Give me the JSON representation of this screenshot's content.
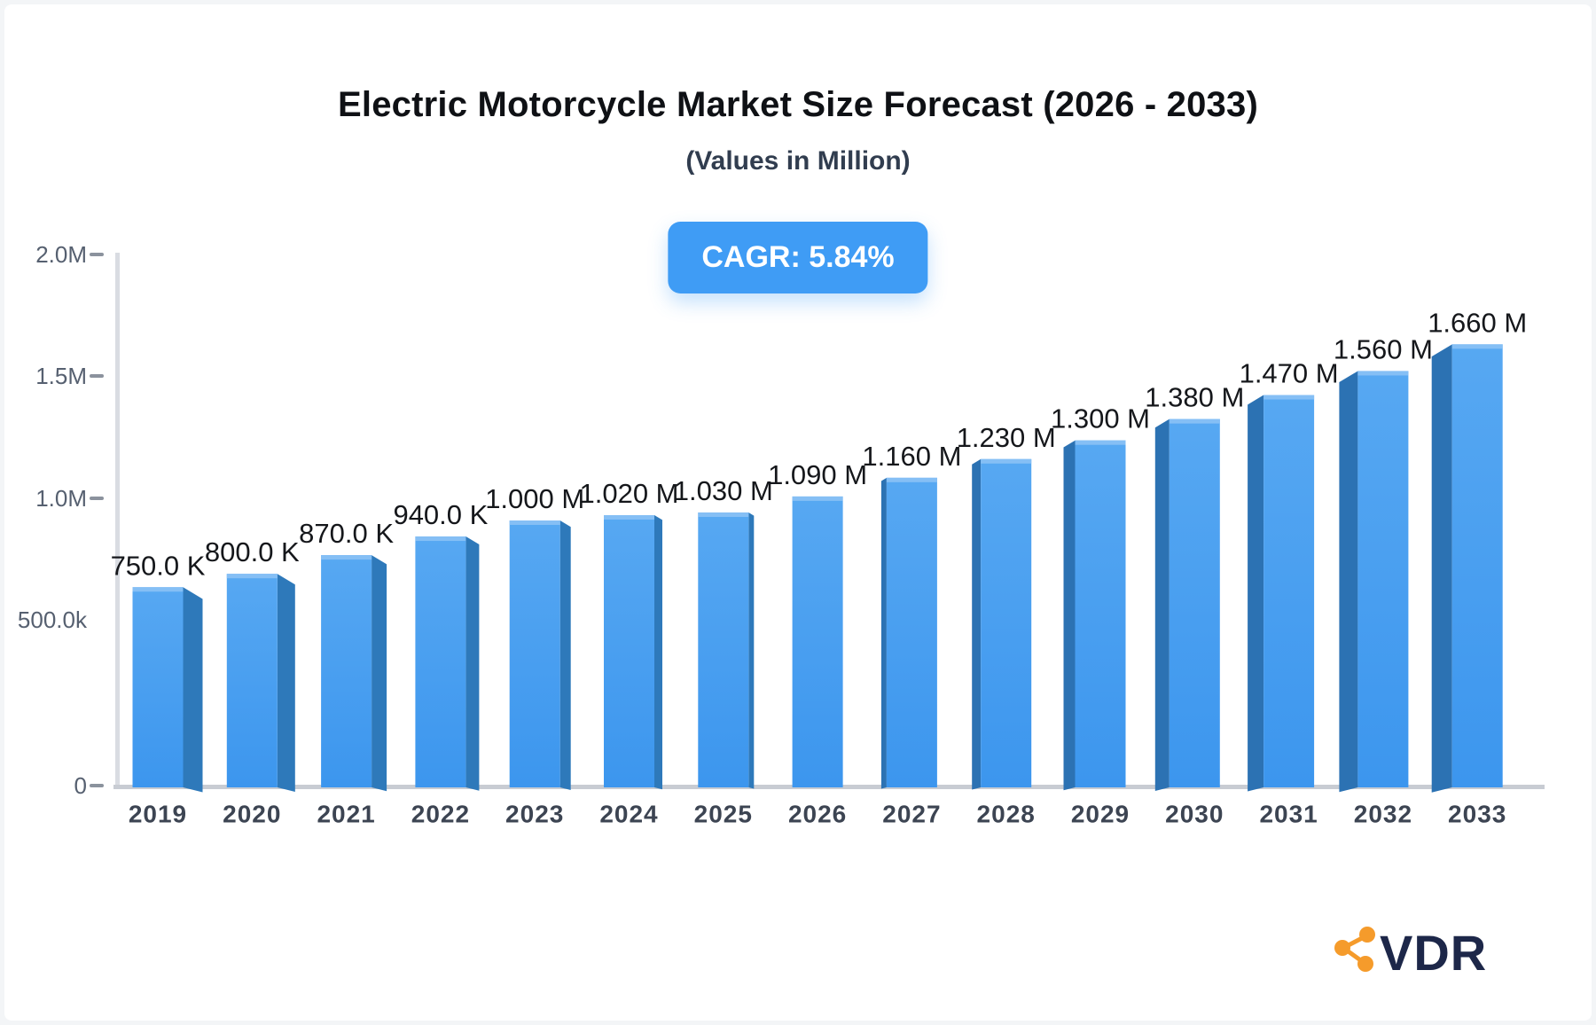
{
  "header": {
    "title": "Electric Motorcycle Market Size Forecast (2026 - 2033)",
    "subtitle": "(Values in Million)",
    "cagr_badge": "CAGR: 5.84%"
  },
  "chart_data": {
    "type": "bar",
    "style": "3d-perspective-columns",
    "title": "Electric Motorcycle Market Size Forecast (2026 - 2033)",
    "subtitle": "(Values in Million)",
    "annotation": "CAGR: 5.84%",
    "categories": [
      "2019",
      "2020",
      "2021",
      "2022",
      "2023",
      "2024",
      "2025",
      "2026",
      "2027",
      "2028",
      "2029",
      "2030",
      "2031",
      "2032",
      "2033"
    ],
    "values_millions": [
      0.75,
      0.8,
      0.87,
      0.94,
      1.0,
      1.02,
      1.03,
      1.09,
      1.16,
      1.23,
      1.3,
      1.38,
      1.47,
      1.56,
      1.66
    ],
    "value_labels": [
      "750.0 K",
      "800.0 K",
      "870.0 K",
      "940.0 K",
      "1.000 M",
      "1.020 M",
      "1.030 M",
      "1.090 M",
      "1.160 M",
      "1.230 M",
      "1.300 M",
      "1.380 M",
      "1.470 M",
      "1.560 M",
      "1.660 M"
    ],
    "y_axis": {
      "range_millions": [
        0,
        2
      ],
      "ticks": [
        {
          "label": "2.0M",
          "dash": true
        },
        {
          "label": "1.5M",
          "dash": true
        },
        {
          "label": "1.0M",
          "dash": true
        },
        {
          "label": "500.0k",
          "dash": false
        },
        {
          "label": "0",
          "dash": true
        }
      ]
    },
    "legend": "none",
    "grid": false,
    "colors": {
      "bar_front_top": "#57a8f2",
      "bar_front_bottom": "#3c96ee",
      "bar_side_left_group": "#2e79ba",
      "bar_side_right_group": "#2c72b3",
      "bar_top_highlight": "#85bff5",
      "value_label": "#15171b",
      "category_label": "#3c4452",
      "tick_label": "#566070",
      "tick_dash": "#8b929d",
      "axis_line": "#d9dce2",
      "baseline": "#c8ccd3",
      "badge_bg": "#3f9cf5"
    }
  },
  "logo": {
    "text": "VDR",
    "icon": "share-network-icon",
    "icon_color": "#f59b2b",
    "text_color": "#1d2749"
  }
}
